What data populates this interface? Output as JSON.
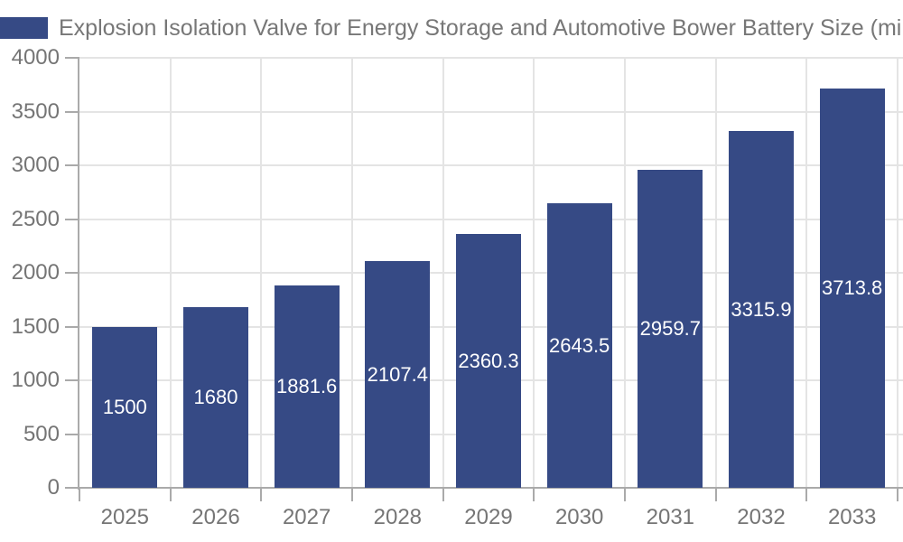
{
  "legend": {
    "label": "Explosion Isolation Valve for Energy Storage and Automotive Bower Battery Size (millio",
    "swatch_color": "#364a85"
  },
  "chart_data": {
    "type": "bar",
    "title": "Explosion Isolation Valve for Energy Storage and Automotive Bower Battery Size (millio",
    "categories": [
      "2025",
      "2026",
      "2027",
      "2028",
      "2029",
      "2030",
      "2031",
      "2032",
      "2033"
    ],
    "values": [
      1500,
      1680,
      1881.6,
      2107.4,
      2360.3,
      2643.5,
      2959.7,
      3315.9,
      3713.8
    ],
    "bar_labels": [
      "1500",
      "1680",
      "1881.6",
      "2107.4",
      "2360.3",
      "2643.5",
      "2959.7",
      "3315.9",
      "3713.8"
    ],
    "xlabel": "",
    "ylabel": "",
    "ylim": [
      0,
      4000
    ],
    "yticks": [
      0,
      500,
      1000,
      1500,
      2000,
      2500,
      3000,
      3500,
      4000
    ],
    "grid": true,
    "legend_position": "top-left",
    "bar_color": "#364a85",
    "bar_label_color": "#ffffff",
    "axis_text_color": "#757575",
    "axis_line_color": "#aaaaaa",
    "grid_color": "#e4e4e4"
  }
}
